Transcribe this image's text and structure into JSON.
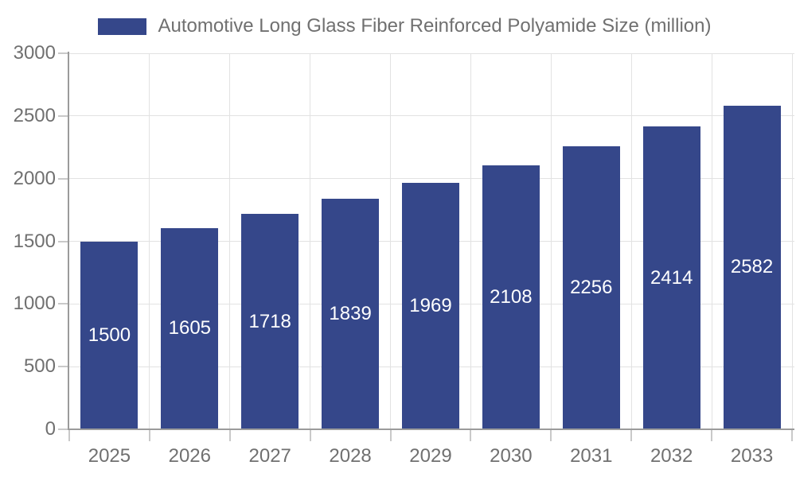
{
  "chart_data": {
    "type": "bar",
    "title": "Automotive Long Glass Fiber Reinforced Polyamide Size (million)",
    "categories": [
      "2025",
      "2026",
      "2027",
      "2028",
      "2029",
      "2030",
      "2031",
      "2032",
      "2033"
    ],
    "values": [
      1500,
      1605,
      1718,
      1839,
      1969,
      2108,
      2256,
      2414,
      2582
    ],
    "xlabel": "",
    "ylabel": "",
    "ylim": [
      0,
      3000
    ],
    "yticks": [
      0,
      500,
      1000,
      1500,
      2000,
      2500,
      3000
    ],
    "grid": true,
    "legend_position": "top",
    "legend_entries": [
      "Automotive Long Glass Fiber Reinforced Polyamide Size (million)"
    ],
    "bar_color": "#35478A",
    "value_label_color": "#FFFFFF",
    "axis_label_color": "#707070",
    "legend_text_color": "#707070",
    "gridline_color": "#E2E2E2",
    "tick_color": "#C9C9C9",
    "axis_line_color": "#9B9B9B"
  }
}
